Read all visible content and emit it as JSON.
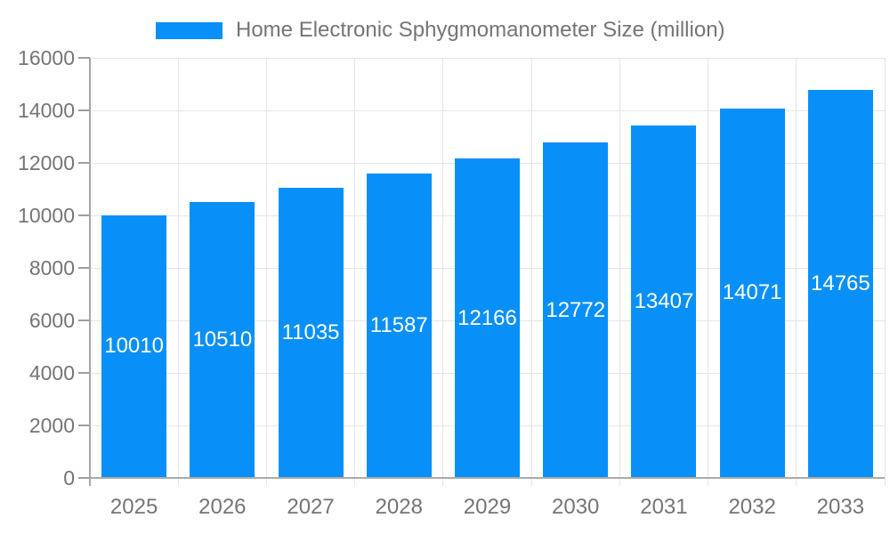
{
  "chart_data": {
    "type": "bar",
    "title": "Home Electronic Sphygmomanometer Size (million)",
    "legend": {
      "position": "top",
      "entries": [
        {
          "label": "Home Electronic Sphygmomanometer Size (million)",
          "color": "#0890f8"
        }
      ]
    },
    "categories": [
      "2025",
      "2026",
      "2027",
      "2028",
      "2029",
      "2030",
      "2031",
      "2032",
      "2033"
    ],
    "series": [
      {
        "name": "Home Electronic Sphygmomanometer Size (million)",
        "values": [
          10010,
          10510,
          11035,
          11587,
          12166,
          12772,
          13407,
          14071,
          14765
        ]
      }
    ],
    "xlabel": "",
    "ylabel": "",
    "ylim": [
      0,
      16000
    ],
    "ytick_step": 2000,
    "grid": true,
    "data_labels": "inside-center-white",
    "colors": {
      "bar": "#0890f8",
      "grid_line": "#e6e6e6",
      "axis_line": "#a6a6a6",
      "baseline": "#ababab",
      "tick_text": "#757575",
      "bar_label_text": "#ffffff",
      "background": "#ffffff"
    }
  }
}
